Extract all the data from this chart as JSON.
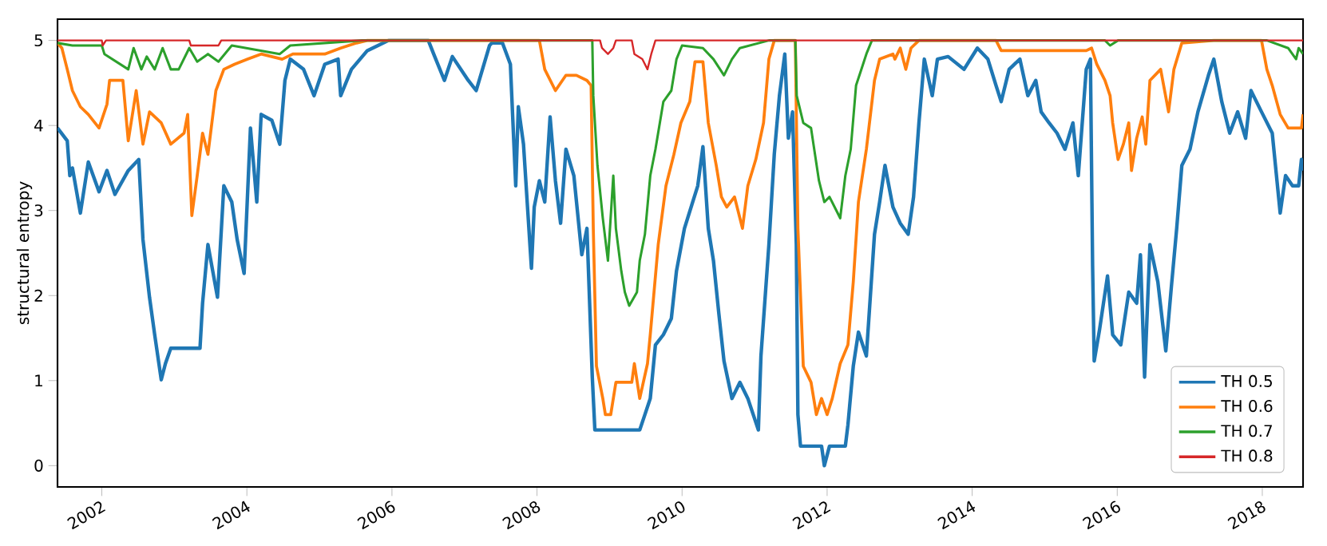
{
  "chart_data": {
    "type": "line",
    "ylabel": "structural entropy",
    "xlim": [
      "2001-05-23",
      "2018-07-25"
    ],
    "ylim": [
      -0.25,
      5.25
    ],
    "xticks": [
      "2002",
      "2004",
      "2006",
      "2008",
      "2010",
      "2012",
      "2014",
      "2016",
      "2018"
    ],
    "yticks": [
      0,
      1,
      2,
      3,
      4,
      5
    ],
    "legend": "bottom right",
    "grid": false,
    "series": [
      {
        "name": "TH 0.5",
        "color": "#1f77b4",
        "x": [
          "2001-05-23",
          "2001-07-11",
          "2001-07-24",
          "2001-08-06",
          "2001-09-15",
          "2001-10-25",
          "2001-12-18",
          "2002-01-27",
          "2002-03-08",
          "2002-05-14",
          "2002-07-06",
          "2002-07-27",
          "2002-08-29",
          "2002-09-24",
          "2002-10-27",
          "2002-11-17",
          "2002-12-14",
          "2003-03-04",
          "2003-05-10",
          "2003-05-23",
          "2003-06-19",
          "2003-08-06",
          "2003-09-07",
          "2003-10-17",
          "2003-11-13",
          "2003-12-18",
          "2004-01-19",
          "2004-02-20",
          "2004-03-13",
          "2004-05-06",
          "2004-06-15",
          "2004-07-11",
          "2004-08-07",
          "2004-10-13",
          "2004-12-05",
          "2005-01-28",
          "2005-04-05",
          "2005-04-18",
          "2005-06-11",
          "2005-08-30",
          "2005-10-23",
          "2005-12-15",
          "2006-07-03",
          "2006-07-30",
          "2006-09-22",
          "2006-11-01",
          "2007-01-20",
          "2007-03-01",
          "2007-05-07",
          "2007-05-19",
          "2007-07-11",
          "2007-08-20",
          "2007-09-16",
          "2007-09-29",
          "2007-10-25",
          "2007-12-04",
          "2007-12-18",
          "2008-01-13",
          "2008-02-09",
          "2008-03-07",
          "2008-04-03",
          "2008-04-29",
          "2008-05-26",
          "2008-07-05",
          "2008-08-14",
          "2008-09-09",
          "2008-10-06",
          "2008-10-19",
          "2009-06-02",
          "2009-06-28",
          "2009-07-25",
          "2009-08-20",
          "2009-09-29",
          "2009-11-08",
          "2009-12-04",
          "2010-01-13",
          "2010-03-21",
          "2010-04-16",
          "2010-05-13",
          "2010-06-08",
          "2010-07-05",
          "2010-07-31",
          "2010-09-09",
          "2010-10-19",
          "2010-11-28",
          "2011-01-20",
          "2011-02-02",
          "2011-03-14",
          "2011-04-10",
          "2011-05-06",
          "2011-06-02",
          "2011-06-20",
          "2011-07-11",
          "2011-07-30",
          "2011-08-07",
          "2011-08-20",
          "2011-12-04",
          "2011-12-18",
          "2012-01-13",
          "2012-04-02",
          "2012-04-15",
          "2012-05-12",
          "2012-06-07",
          "2012-07-17",
          "2012-08-27",
          "2012-09-22",
          "2012-10-19",
          "2012-11-28",
          "2013-01-04",
          "2013-02-13",
          "2013-03-12",
          "2013-04-08",
          "2013-05-05",
          "2013-06-14",
          "2013-07-10",
          "2013-09-02",
          "2013-11-21",
          "2014-01-27",
          "2014-03-21",
          "2014-05-01",
          "2014-05-27",
          "2014-07-06",
          "2014-08-29",
          "2014-10-08",
          "2014-11-17",
          "2014-12-14",
          "2015-01-23",
          "2015-03-04",
          "2015-04-13",
          "2015-05-23",
          "2015-06-19",
          "2015-07-29",
          "2015-08-19",
          "2015-08-30",
          "2015-09-07",
          "2015-10-04",
          "2015-11-13",
          "2015-12-09",
          "2016-01-19",
          "2016-02-28",
          "2016-04-08",
          "2016-04-27",
          "2016-05-18",
          "2016-06-14",
          "2016-07-24",
          "2016-09-02",
          "2016-09-30",
          "2016-10-27",
          "2016-11-22",
          "2017-01-02",
          "2017-02-11",
          "2017-04-05",
          "2017-05-02",
          "2017-06-11",
          "2017-07-21",
          "2017-08-30",
          "2017-10-09",
          "2017-11-05",
          "2017-12-28",
          "2018-02-20",
          "2018-04-01",
          "2018-04-28",
          "2018-06-02",
          "2018-07-03",
          "2018-07-17",
          "2018-07-25"
        ],
        "values": [
          3.97,
          3.82,
          3.41,
          3.5,
          2.97,
          3.57,
          3.22,
          3.47,
          3.19,
          3.47,
          3.6,
          2.66,
          1.98,
          1.54,
          1.01,
          1.2,
          1.38,
          1.38,
          1.38,
          1.91,
          2.6,
          1.98,
          3.29,
          3.1,
          2.66,
          2.26,
          3.97,
          3.1,
          4.13,
          4.06,
          3.78,
          4.53,
          4.78,
          4.66,
          4.35,
          4.72,
          4.78,
          4.35,
          4.66,
          4.88,
          4.94,
          5.0,
          5.0,
          4.84,
          4.53,
          4.81,
          4.53,
          4.41,
          4.94,
          4.97,
          4.97,
          4.72,
          3.29,
          4.22,
          3.78,
          2.32,
          3.04,
          3.35,
          3.1,
          4.1,
          3.35,
          2.85,
          3.72,
          3.41,
          2.48,
          2.79,
          1.04,
          0.42,
          0.42,
          0.6,
          0.79,
          1.42,
          1.54,
          1.73,
          2.29,
          2.79,
          3.29,
          3.75,
          2.79,
          2.41,
          1.79,
          1.23,
          0.79,
          0.98,
          0.79,
          0.42,
          1.29,
          2.6,
          3.66,
          4.35,
          4.84,
          3.85,
          4.16,
          2.6,
          0.6,
          0.23,
          0.23,
          0.0,
          0.23,
          0.23,
          0.48,
          1.17,
          1.57,
          1.29,
          2.72,
          3.1,
          3.53,
          3.04,
          2.85,
          2.72,
          3.16,
          4.03,
          4.78,
          4.35,
          4.78,
          4.81,
          4.66,
          4.91,
          4.78,
          4.47,
          4.28,
          4.66,
          4.78,
          4.35,
          4.53,
          4.16,
          4.03,
          3.91,
          3.72,
          4.03,
          3.41,
          4.66,
          4.78,
          2.35,
          1.23,
          1.6,
          2.23,
          1.54,
          1.42,
          2.04,
          1.91,
          2.48,
          1.04,
          2.6,
          2.16,
          1.35,
          2.1,
          2.79,
          3.53,
          3.72,
          4.16,
          4.59,
          4.78,
          4.28,
          3.91,
          4.16,
          3.85,
          4.41,
          4.16,
          3.91,
          2.97,
          3.41,
          3.29,
          3.29,
          3.6,
          3.47
        ]
      },
      {
        "name": "TH 0.6",
        "color": "#ff7f0e",
        "x": [
          "2001-05-23",
          "2001-06-14",
          "2001-07-11",
          "2001-08-06",
          "2001-09-15",
          "2001-10-25",
          "2001-12-18",
          "2002-01-27",
          "2002-02-09",
          "2002-04-17",
          "2002-05-14",
          "2002-06-23",
          "2002-07-27",
          "2002-08-29",
          "2002-10-27",
          "2002-12-14",
          "2003-02-19",
          "2003-03-09",
          "2003-03-30",
          "2003-04-26",
          "2003-05-23",
          "2003-06-19",
          "2003-07-29",
          "2003-09-07",
          "2003-10-31",
          "2004-01-05",
          "2004-03-13",
          "2004-06-27",
          "2004-08-20",
          "2005-01-28",
          "2005-04-18",
          "2005-07-07",
          "2005-08-30",
          "2008-01-13",
          "2008-02-09",
          "2008-04-03",
          "2008-05-26",
          "2008-07-18",
          "2008-09-09",
          "2008-09-30",
          "2008-10-11",
          "2008-10-27",
          "2008-11-28",
          "2008-12-11",
          "2009-01-07",
          "2009-02-02",
          "2009-04-23",
          "2009-05-06",
          "2009-06-02",
          "2009-07-11",
          "2009-07-25",
          "2009-09-03",
          "2009-10-12",
          "2009-11-21",
          "2009-12-26",
          "2010-02-09",
          "2010-03-07",
          "2010-04-16",
          "2010-05-13",
          "2010-06-22",
          "2010-07-18",
          "2010-08-14",
          "2010-09-22",
          "2010-11-01",
          "2010-11-28",
          "2011-01-07",
          "2011-02-15",
          "2011-03-14",
          "2011-04-10",
          "2011-07-25",
          "2011-08-07",
          "2011-09-03",
          "2011-10-12",
          "2011-11-08",
          "2011-12-04",
          "2012-01-01",
          "2012-01-27",
          "2012-03-07",
          "2012-04-15",
          "2012-05-12",
          "2012-06-07",
          "2012-07-17",
          "2012-08-27",
          "2012-09-22",
          "2012-11-28",
          "2012-12-08",
          "2013-01-04",
          "2013-02-01",
          "2013-02-27",
          "2013-04-08",
          "2014-05-01",
          "2014-05-27",
          "2015-07-29",
          "2015-08-25",
          "2015-09-20",
          "2015-10-31",
          "2015-11-26",
          "2015-12-09",
          "2016-01-05",
          "2016-02-01",
          "2016-02-28",
          "2016-03-13",
          "2016-04-08",
          "2016-05-06",
          "2016-05-24",
          "2016-06-14",
          "2016-08-07",
          "2016-09-16",
          "2016-10-13",
          "2016-11-22",
          "2017-05-02",
          "2017-12-28",
          "2018-01-24",
          "2018-02-20",
          "2018-04-01",
          "2018-05-11",
          "2018-07-17",
          "2018-07-25"
        ],
        "values": [
          4.97,
          4.91,
          4.66,
          4.41,
          4.22,
          4.13,
          3.97,
          4.25,
          4.53,
          4.53,
          3.82,
          4.41,
          3.78,
          4.16,
          4.03,
          3.78,
          3.91,
          4.13,
          2.94,
          3.41,
          3.91,
          3.66,
          4.41,
          4.66,
          4.72,
          4.78,
          4.84,
          4.78,
          4.84,
          4.84,
          4.91,
          4.97,
          5.0,
          5.0,
          4.66,
          4.41,
          4.59,
          4.59,
          4.53,
          4.47,
          2.79,
          1.17,
          0.79,
          0.6,
          0.6,
          0.98,
          0.98,
          1.2,
          0.79,
          1.2,
          1.54,
          2.6,
          3.29,
          3.66,
          4.03,
          4.28,
          4.75,
          4.75,
          4.03,
          3.53,
          3.16,
          3.04,
          3.16,
          2.79,
          3.29,
          3.6,
          4.03,
          4.78,
          5.0,
          5.0,
          2.79,
          1.17,
          0.98,
          0.6,
          0.79,
          0.6,
          0.79,
          1.2,
          1.42,
          2.16,
          3.1,
          3.72,
          4.53,
          4.78,
          4.84,
          4.78,
          4.91,
          4.66,
          4.91,
          5.0,
          5.0,
          4.88,
          4.88,
          4.91,
          4.72,
          4.53,
          4.35,
          4.03,
          3.6,
          3.78,
          4.03,
          3.47,
          3.85,
          4.1,
          3.78,
          4.53,
          4.66,
          4.16,
          4.66,
          4.97,
          5.0,
          5.0,
          4.66,
          4.47,
          4.13,
          3.97,
          3.97,
          4.13
        ]
      },
      {
        "name": "TH 0.7",
        "color": "#2ca02c",
        "x": [
          "2001-05-23",
          "2001-08-06",
          "2002-01-01",
          "2002-01-14",
          "2002-05-14",
          "2002-06-10",
          "2002-07-19",
          "2002-08-15",
          "2002-09-24",
          "2002-11-03",
          "2002-12-14",
          "2003-01-23",
          "2003-03-17",
          "2003-04-26",
          "2003-06-19",
          "2003-08-11",
          "2003-10-17",
          "2004-06-15",
          "2004-08-07",
          "2005-08-03",
          "2008-10-06",
          "2008-10-11",
          "2008-11-01",
          "2008-11-28",
          "2008-12-24",
          "2009-01-20",
          "2009-02-02",
          "2009-03-01",
          "2009-03-19",
          "2009-04-10",
          "2009-05-19",
          "2009-06-02",
          "2009-06-28",
          "2009-07-25",
          "2009-08-20",
          "2009-09-29",
          "2009-11-08",
          "2009-12-04",
          "2010-01-01",
          "2010-04-16",
          "2010-06-08",
          "2010-07-31",
          "2010-09-09",
          "2010-10-19",
          "2011-03-14",
          "2011-07-25",
          "2011-08-01",
          "2011-09-03",
          "2011-10-12",
          "2011-11-21",
          "2011-12-18",
          "2012-01-13",
          "2012-03-07",
          "2012-04-02",
          "2012-04-29",
          "2012-05-26",
          "2012-06-22",
          "2012-07-17",
          "2012-08-14",
          "2015-10-31",
          "2015-11-26",
          "2016-01-05",
          "2018-01-24",
          "2018-05-11",
          "2018-06-20",
          "2018-07-03",
          "2018-07-25"
        ],
        "values": [
          4.97,
          4.94,
          4.94,
          4.84,
          4.66,
          4.91,
          4.66,
          4.81,
          4.66,
          4.91,
          4.66,
          4.66,
          4.91,
          4.75,
          4.84,
          4.75,
          4.94,
          4.84,
          4.94,
          5.0,
          5.0,
          4.35,
          3.53,
          2.91,
          2.41,
          3.41,
          2.79,
          2.29,
          2.04,
          1.88,
          2.04,
          2.41,
          2.72,
          3.41,
          3.72,
          4.28,
          4.41,
          4.78,
          4.94,
          4.91,
          4.78,
          4.59,
          4.78,
          4.91,
          5.0,
          5.0,
          4.35,
          4.03,
          3.97,
          3.35,
          3.1,
          3.16,
          2.91,
          3.41,
          3.72,
          4.47,
          4.66,
          4.84,
          5.0,
          5.0,
          4.94,
          5.0,
          5.0,
          4.91,
          4.78,
          4.91,
          4.84
        ]
      },
      {
        "name": "TH 0.8",
        "color": "#d62728",
        "x": [
          "2001-05-23",
          "2002-01-01",
          "2002-01-05",
          "2002-01-22",
          "2003-03-17",
          "2003-03-25",
          "2003-08-11",
          "2003-08-25",
          "2008-11-14",
          "2008-11-24",
          "2008-12-24",
          "2009-01-20",
          "2009-02-02",
          "2009-04-23",
          "2009-05-06",
          "2009-06-15",
          "2009-07-11",
          "2009-07-30",
          "2009-08-20",
          "2018-07-25"
        ],
        "values": [
          5.0,
          5.0,
          4.94,
          5.0,
          5.0,
          4.94,
          4.94,
          5.0,
          5.0,
          4.91,
          4.84,
          4.91,
          5.0,
          5.0,
          4.84,
          4.78,
          4.66,
          4.84,
          5.0,
          5.0
        ]
      }
    ]
  }
}
